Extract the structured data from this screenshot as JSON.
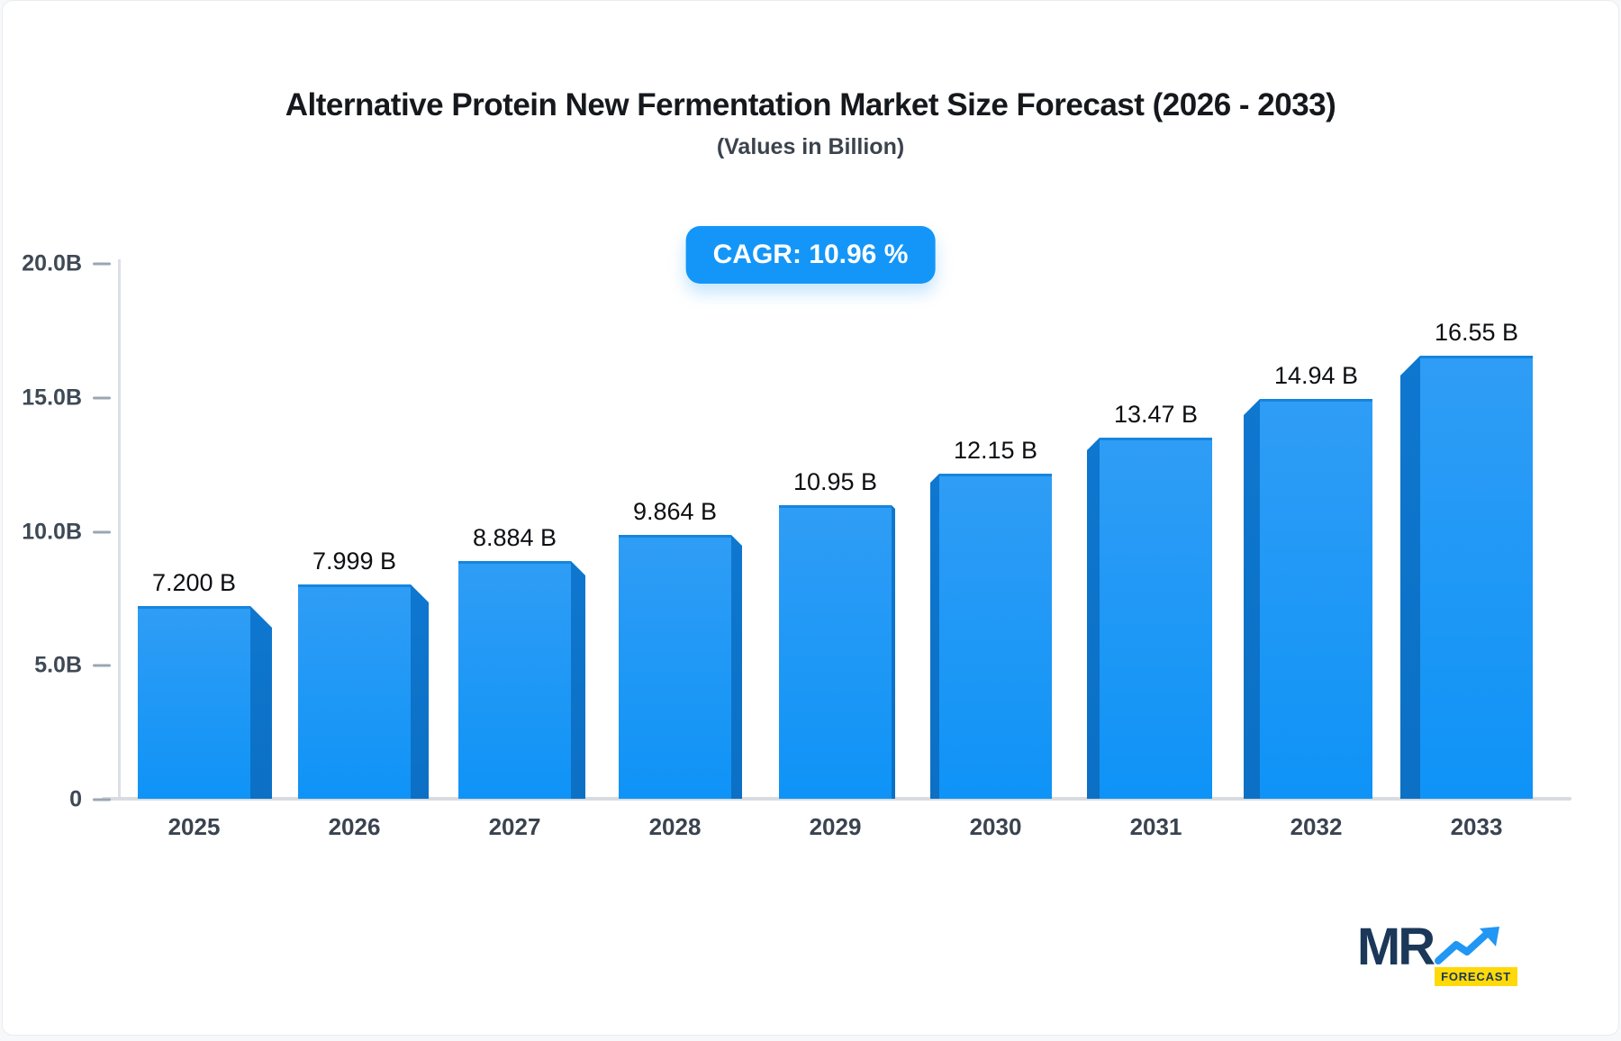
{
  "page": {
    "title": "Alternative Protein New Fermentation Market Size Forecast (2026 - 2033)",
    "subtitle": "(Values in Billion)"
  },
  "badge": {
    "label": "CAGR: 10.96 %",
    "bg": "#1496f8",
    "text_color": "#ffffff"
  },
  "chart_data": {
    "type": "bar",
    "title": "Alternative Protein New Fermentation Market Size Forecast (2026 - 2033)",
    "subtitle": "(Values in Billion)",
    "cagr_percent": 10.96,
    "categories": [
      "2025",
      "2026",
      "2027",
      "2028",
      "2029",
      "2030",
      "2031",
      "2032",
      "2033"
    ],
    "values": [
      7.2,
      7.999,
      8.884,
      9.864,
      10.95,
      12.15,
      13.47,
      14.94,
      16.55
    ],
    "data_labels": [
      "7.200 B",
      "7.999 B",
      "8.884 B",
      "9.864 B",
      "10.95 B",
      "12.15 B",
      "13.47 B",
      "14.94 B",
      "16.55 B"
    ],
    "unit": "Billion",
    "xlabel": "",
    "ylabel": "",
    "ylim": [
      0,
      20
    ],
    "yticks": [
      {
        "value": 0,
        "label": "0"
      },
      {
        "value": 5,
        "label": "5.0B"
      },
      {
        "value": 10,
        "label": "10.0B"
      },
      {
        "value": 15,
        "label": "15.0B"
      },
      {
        "value": 20,
        "label": "20.0B"
      }
    ],
    "grid": false,
    "legend": false,
    "bar_style": "3d-perspective-center-vanishing",
    "colors": {
      "bar_front_top": "#2f9df5",
      "bar_front_bottom": "#0f93f7",
      "bar_side": "#0c70c5",
      "bar_top_edge": "#1685de",
      "axis": "#d8dce1",
      "tick": "#9aa6b2",
      "tick_label": "#3f4956",
      "year_label": "#3a4350",
      "data_label": "#0d0f12"
    }
  },
  "logo": {
    "mr": "MR",
    "forecast": "FORECAST",
    "navy": "#1b3859",
    "yellow": "#ffd908",
    "arrow_blue": "#2196f3"
  }
}
